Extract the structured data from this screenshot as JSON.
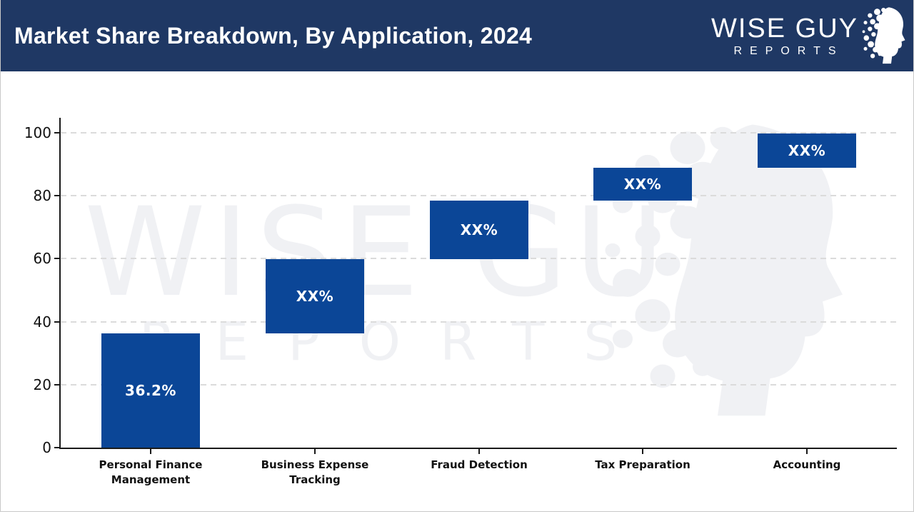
{
  "header": {
    "title": "Market Share Breakdown, By Application, 2024",
    "logo": {
      "name": "WISE GUY",
      "sub": "REPORTS"
    }
  },
  "watermark": {
    "name": "WISE GUY",
    "sub": "REPORTS"
  },
  "colors": {
    "header_bg": "#1F3864",
    "bar": "#0B4697",
    "grid": "#DBDBDB",
    "axis": "#1A1A1A",
    "bar_label": "#FFFFFF",
    "watermark": "#F0F1F4",
    "frame_border": "#C9C9C9"
  },
  "chart_data": {
    "type": "bar",
    "variant": "waterfall",
    "title": "Market Share Breakdown, By Application, 2024",
    "categories": [
      "Personal Finance Management",
      "Business Expense Tracking",
      "Fraud Detection",
      "Tax Preparation",
      "Accounting"
    ],
    "category_lines": [
      [
        "Personal Finance",
        "Management"
      ],
      [
        "Business Expense",
        "Tracking"
      ],
      [
        "Fraud Detection"
      ],
      [
        "Tax Preparation"
      ],
      [
        "Accounting"
      ]
    ],
    "segments": [
      {
        "category": "Personal Finance Management",
        "start": 0,
        "end": 36.2,
        "label": "36.2%"
      },
      {
        "category": "Business Expense Tracking",
        "start": 36.2,
        "end": 59.8,
        "label": "XX%"
      },
      {
        "category": "Fraud Detection",
        "start": 59.8,
        "end": 78.4,
        "label": "XX%"
      },
      {
        "category": "Tax Preparation",
        "start": 78.4,
        "end": 89.0,
        "label": "XX%"
      },
      {
        "category": "Accounting",
        "start": 89.0,
        "end": 99.8,
        "label": "XX%"
      }
    ],
    "y_ticks": [
      0,
      20,
      40,
      60,
      80,
      100
    ],
    "ylim": [
      0,
      104
    ],
    "xlabel": "",
    "ylabel": "",
    "grid": "horizontal-dashed",
    "legend": "none",
    "bar_color": "#0B4697"
  }
}
